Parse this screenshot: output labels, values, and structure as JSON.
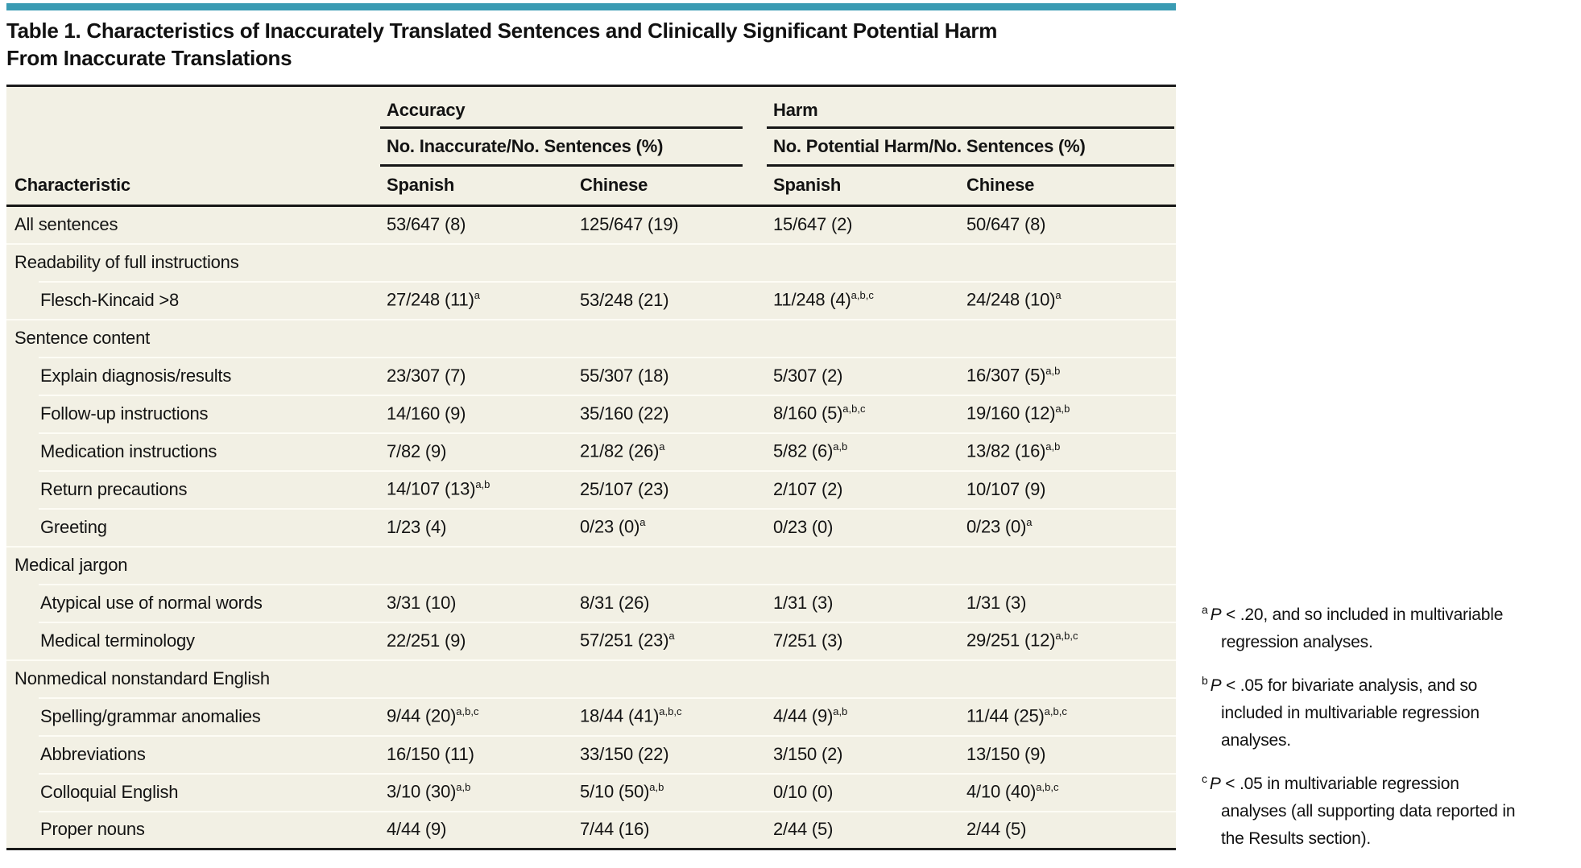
{
  "colors": {
    "accent": "#3a9bb3",
    "table_bg": "#f2f0e4"
  },
  "title": {
    "line1": "Table 1. Characteristics of Inaccurately Translated Sentences and Clinically Significant Potential Harm",
    "line2": "From Inaccurate Translations"
  },
  "table": {
    "groups": [
      {
        "label": "Accuracy",
        "sub": "No. Inaccurate/No. Sentences (%)"
      },
      {
        "label": "Harm",
        "sub": "No. Potential Harm/No. Sentences (%)"
      }
    ],
    "columns": [
      "Characteristic",
      "Spanish",
      "Chinese",
      "Spanish",
      "Chinese"
    ],
    "rows": [
      {
        "label": "All sentences",
        "type": "plain",
        "cells": [
          {
            "v": "53/647 (8)",
            "s": ""
          },
          {
            "v": "125/647 (19)",
            "s": ""
          },
          {
            "v": "15/647 (2)",
            "s": ""
          },
          {
            "v": "50/647 (8)",
            "s": ""
          }
        ]
      },
      {
        "label": "Readability of full instructions",
        "type": "section",
        "cells": []
      },
      {
        "label": "Flesch-Kincaid >8",
        "type": "indent",
        "cells": [
          {
            "v": "27/248 (11)",
            "s": "a"
          },
          {
            "v": "53/248 (21)",
            "s": ""
          },
          {
            "v": "11/248 (4)",
            "s": "a,b,c"
          },
          {
            "v": "24/248 (10)",
            "s": "a"
          }
        ]
      },
      {
        "label": "Sentence content",
        "type": "section",
        "cells": []
      },
      {
        "label": "Explain diagnosis/results",
        "type": "indent",
        "cells": [
          {
            "v": "23/307 (7)",
            "s": ""
          },
          {
            "v": "55/307 (18)",
            "s": ""
          },
          {
            "v": "5/307 (2)",
            "s": ""
          },
          {
            "v": "16/307 (5)",
            "s": "a,b"
          }
        ]
      },
      {
        "label": "Follow-up instructions",
        "type": "indent",
        "cells": [
          {
            "v": "14/160 (9)",
            "s": ""
          },
          {
            "v": "35/160 (22)",
            "s": ""
          },
          {
            "v": "8/160 (5)",
            "s": "a,b,c"
          },
          {
            "v": "19/160 (12)",
            "s": "a,b"
          }
        ]
      },
      {
        "label": "Medication instructions",
        "type": "indent",
        "cells": [
          {
            "v": "7/82 (9)",
            "s": ""
          },
          {
            "v": "21/82 (26)",
            "s": "a"
          },
          {
            "v": "5/82 (6)",
            "s": "a,b"
          },
          {
            "v": "13/82 (16)",
            "s": "a,b"
          }
        ]
      },
      {
        "label": "Return precautions",
        "type": "indent",
        "cells": [
          {
            "v": "14/107 (13)",
            "s": "a,b"
          },
          {
            "v": "25/107 (23)",
            "s": ""
          },
          {
            "v": "2/107 (2)",
            "s": ""
          },
          {
            "v": "10/107 (9)",
            "s": ""
          }
        ]
      },
      {
        "label": "Greeting",
        "type": "indent",
        "cells": [
          {
            "v": "1/23 (4)",
            "s": ""
          },
          {
            "v": "0/23 (0)",
            "s": "a"
          },
          {
            "v": "0/23 (0)",
            "s": ""
          },
          {
            "v": "0/23 (0)",
            "s": "a"
          }
        ]
      },
      {
        "label": "Medical jargon",
        "type": "section",
        "cells": []
      },
      {
        "label": "Atypical use of normal words",
        "type": "indent",
        "cells": [
          {
            "v": "3/31 (10)",
            "s": ""
          },
          {
            "v": "8/31 (26)",
            "s": ""
          },
          {
            "v": "1/31 (3)",
            "s": ""
          },
          {
            "v": "1/31 (3)",
            "s": ""
          }
        ]
      },
      {
        "label": "Medical terminology",
        "type": "indent",
        "cells": [
          {
            "v": "22/251 (9)",
            "s": ""
          },
          {
            "v": "57/251 (23)",
            "s": "a"
          },
          {
            "v": "7/251 (3)",
            "s": ""
          },
          {
            "v": "29/251 (12)",
            "s": "a,b,c"
          }
        ]
      },
      {
        "label": "Nonmedical nonstandard English",
        "type": "section",
        "cells": []
      },
      {
        "label": "Spelling/grammar anomalies",
        "type": "indent",
        "cells": [
          {
            "v": "9/44 (20)",
            "s": "a,b,c"
          },
          {
            "v": "18/44 (41)",
            "s": "a,b,c"
          },
          {
            "v": "4/44 (9)",
            "s": "a,b"
          },
          {
            "v": "11/44 (25)",
            "s": "a,b,c"
          }
        ]
      },
      {
        "label": "Abbreviations",
        "type": "indent",
        "cells": [
          {
            "v": "16/150 (11)",
            "s": ""
          },
          {
            "v": "33/150 (22)",
            "s": ""
          },
          {
            "v": "3/150 (2)",
            "s": ""
          },
          {
            "v": "13/150 (9)",
            "s": ""
          }
        ]
      },
      {
        "label": "Colloquial English",
        "type": "indent",
        "cells": [
          {
            "v": "3/10 (30)",
            "s": "a,b"
          },
          {
            "v": "5/10 (50)",
            "s": "a,b"
          },
          {
            "v": "0/10 (0)",
            "s": ""
          },
          {
            "v": "4/10 (40)",
            "s": "a,b,c"
          }
        ]
      },
      {
        "label": "Proper nouns",
        "type": "indent",
        "cells": [
          {
            "v": "4/44 (9)",
            "s": ""
          },
          {
            "v": "7/44 (16)",
            "s": ""
          },
          {
            "v": "2/44 (5)",
            "s": ""
          },
          {
            "v": "2/44 (5)",
            "s": ""
          }
        ]
      }
    ]
  },
  "footnotes": [
    {
      "marker": "a",
      "lead": "P",
      "text": "< .20, and so included in multivariable regression analyses."
    },
    {
      "marker": "b",
      "lead": "P",
      "text": "< .05 for bivariate analysis, and so included in multivariable regression analyses."
    },
    {
      "marker": "c",
      "lead": "P",
      "text": "< .05 in multivariable regression analyses (all supporting data reported in the Results section)."
    }
  ]
}
